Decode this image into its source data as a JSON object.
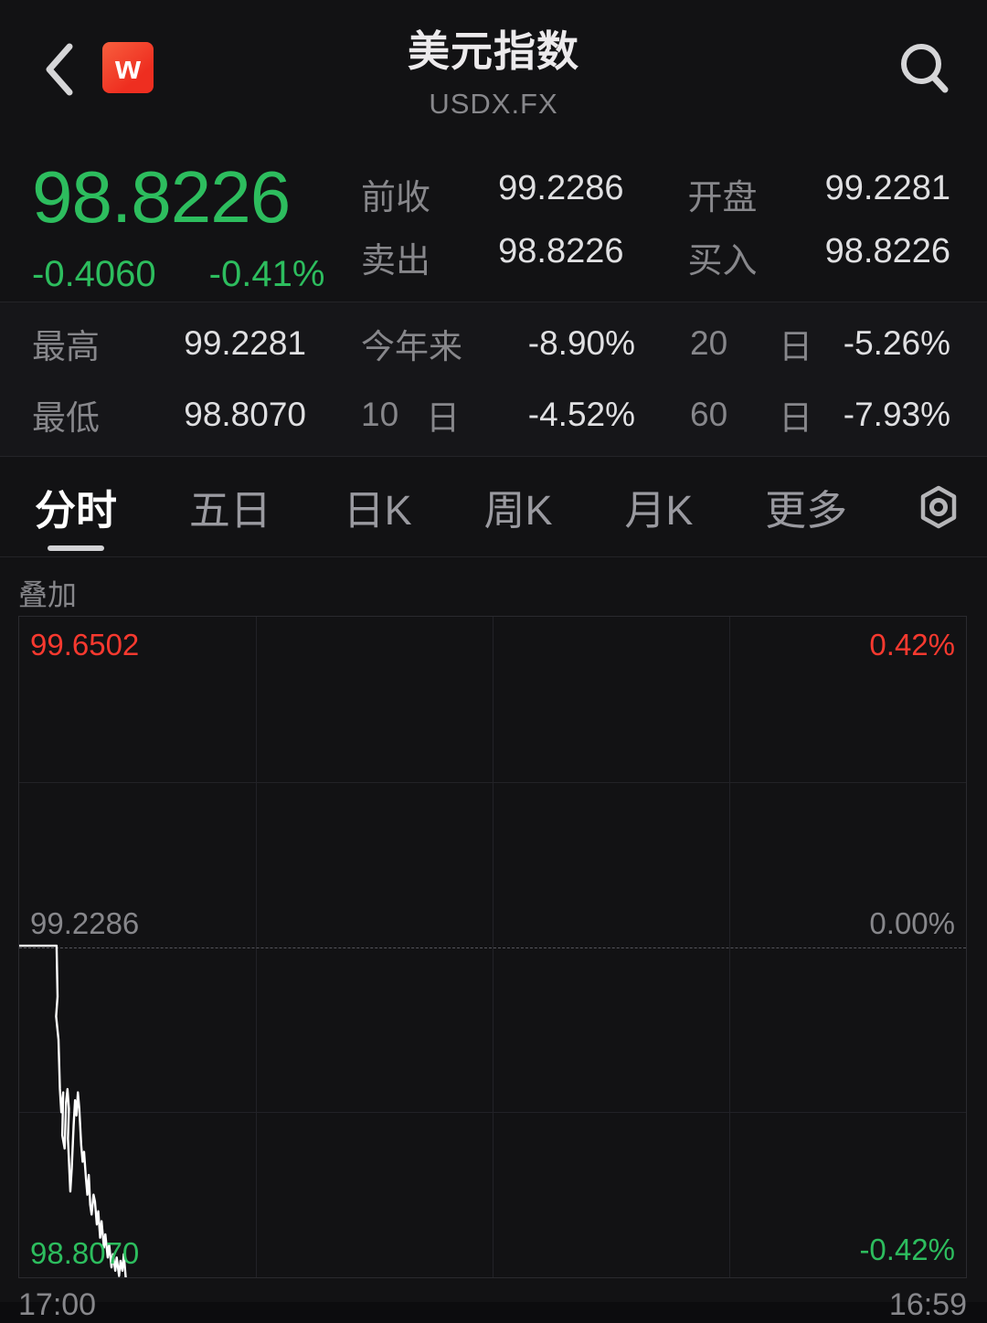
{
  "colors": {
    "up_red": "#f7392f",
    "down_green": "#2dbd5e",
    "label_gray": "#87878b",
    "text_white": "#e6e6e8",
    "logo_red": "#ee2e20"
  },
  "icons": {
    "back": "chevron-left",
    "logo": "wind-w-square",
    "search": "magnifier",
    "settings": "hex-nut-gear"
  },
  "header": {
    "title": "美元指数",
    "subtitle": "USDX.FX",
    "logo_text": "w"
  },
  "quote": {
    "last": "98.8226",
    "change": "-0.4060",
    "change_pct": "-0.41%",
    "fields": [
      {
        "label": "前收",
        "value": "99.2286"
      },
      {
        "label": "开盘",
        "value": "99.2281"
      },
      {
        "label": "卖出",
        "value": "98.8226"
      },
      {
        "label": "买入",
        "value": "98.8226"
      }
    ]
  },
  "stats": [
    {
      "l1": "最高",
      "l2": "",
      "v": "99.2281"
    },
    {
      "l1": "今年来",
      "l2": "",
      "v": "-8.90%"
    },
    {
      "l1": "20",
      "l2": "日",
      "v": "-5.26%"
    },
    {
      "l1": "最低",
      "l2": "",
      "v": "98.8070"
    },
    {
      "l1": "10",
      "l2": "日",
      "v": "-4.52%"
    },
    {
      "l1": "60",
      "l2": "日",
      "v": "-7.93%"
    }
  ],
  "tabs": [
    {
      "label": "分时",
      "active": true
    },
    {
      "label": "五日",
      "active": false
    },
    {
      "label": "日K",
      "active": false
    },
    {
      "label": "周K",
      "active": false
    },
    {
      "label": "月K",
      "active": false
    },
    {
      "label": "更多",
      "active": false
    }
  ],
  "overlay_label": "叠加",
  "chart_data": {
    "type": "line",
    "title": "美元指数 分时",
    "symbol": "USDX.FX",
    "x_labels": [
      "17:00",
      "16:59"
    ],
    "y_axis_left": {
      "top": "99.6502",
      "middle": "99.2286",
      "bottom": "98.8070"
    },
    "y_axis_right": {
      "top": "0.42%",
      "middle": "0.00%",
      "bottom": "-0.42%"
    },
    "y_range": [
      98.807,
      99.6502
    ],
    "prev_close": 99.2286,
    "open": 99.2281,
    "last": 98.8226,
    "low": 98.807,
    "grid": {
      "v_lines_pct": [
        25,
        50,
        75
      ],
      "h_lines_pct": [
        25,
        75
      ],
      "mid_dashed_pct": 50,
      "legend": "none"
    },
    "line_color": "#ffffff",
    "axis_note": "y_pct 0 = 99.6502 (top), 50 = 99.2286 (prev close, dashed), 100 = 98.8070 (bottom)",
    "polyline_pct": [
      [
        0,
        49.8
      ],
      [
        3.95,
        49.8
      ],
      [
        4.05,
        57.5
      ],
      [
        3.9,
        60.5
      ],
      [
        4.15,
        64
      ],
      [
        4.3,
        71.5
      ],
      [
        4.45,
        75
      ],
      [
        4.65,
        72
      ],
      [
        4.55,
        78.5
      ],
      [
        4.8,
        80.5
      ],
      [
        4.95,
        73.5
      ],
      [
        5.1,
        71.5
      ],
      [
        5.25,
        74.5
      ],
      [
        5.15,
        79
      ],
      [
        5.4,
        87
      ],
      [
        5.55,
        83.5
      ],
      [
        5.75,
        77
      ],
      [
        5.9,
        73.2
      ],
      [
        6.05,
        75.5
      ],
      [
        6.2,
        72
      ],
      [
        6.35,
        74.5
      ],
      [
        6.55,
        80
      ],
      [
        6.7,
        82.5
      ],
      [
        6.85,
        81
      ],
      [
        7.05,
        85
      ],
      [
        7.2,
        87.5
      ],
      [
        7.35,
        84.5
      ],
      [
        7.5,
        89
      ],
      [
        7.65,
        90.5
      ],
      [
        7.85,
        87.5
      ],
      [
        8.0,
        88.5
      ],
      [
        8.2,
        92
      ],
      [
        8.35,
        90
      ],
      [
        8.55,
        94
      ],
      [
        8.7,
        91.5
      ],
      [
        8.95,
        95.5
      ],
      [
        9.1,
        93.5
      ],
      [
        9.35,
        97
      ],
      [
        9.5,
        95
      ],
      [
        9.75,
        98.5
      ],
      [
        9.9,
        96.5
      ],
      [
        10.15,
        99
      ],
      [
        10.3,
        97
      ],
      [
        10.55,
        99.8
      ],
      [
        10.7,
        97.5
      ],
      [
        10.9,
        99
      ],
      [
        11.05,
        96.5
      ],
      [
        11.25,
        100
      ]
    ]
  }
}
